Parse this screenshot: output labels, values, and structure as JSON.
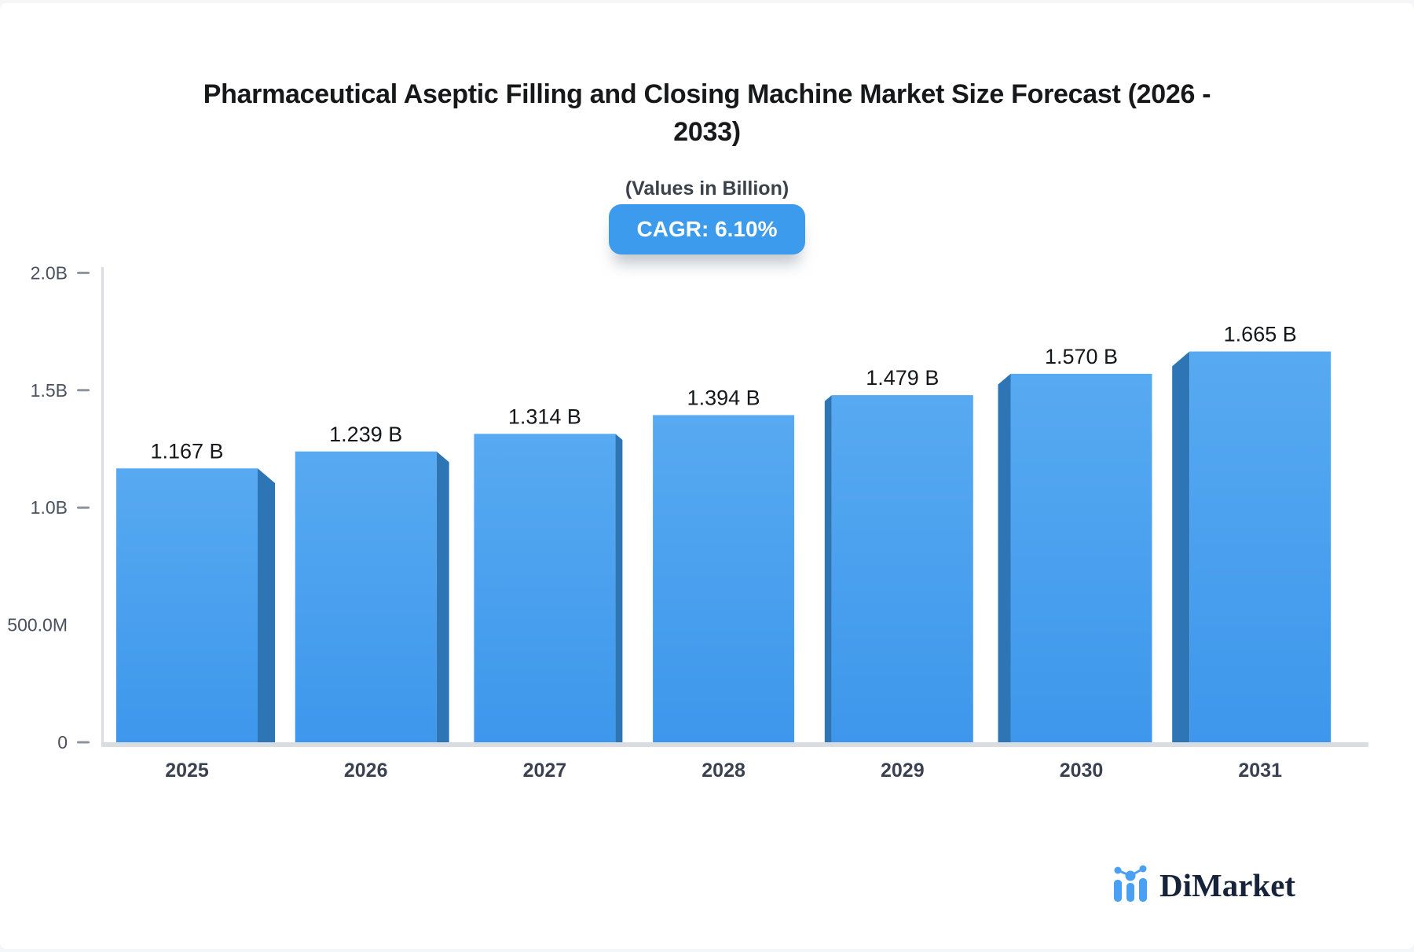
{
  "header": {
    "title_line1": "Pharmaceutical Aseptic Filling and Closing Machine Market Size Forecast (2026 -",
    "title_line2": "2033)",
    "subtitle": "(Values in Billion)",
    "cagr_badge": "CAGR: 6.10%"
  },
  "chart_data": {
    "type": "bar",
    "title": "Pharmaceutical Aseptic Filling and Closing Machine Market Size Forecast (2026 - 2033)",
    "subtitle": "(Values in Billion)",
    "cagr_label": "CAGR: 6.10%",
    "unit": "Billion",
    "categories": [
      "2025",
      "2026",
      "2027",
      "2028",
      "2029",
      "2030",
      "2031"
    ],
    "values": [
      1.167,
      1.239,
      1.314,
      1.394,
      1.479,
      1.57,
      1.665
    ],
    "bar_labels": [
      "1.167 B",
      "1.239 B",
      "1.314 B",
      "1.394 B",
      "1.479 B",
      "1.570 B",
      "1.665 B"
    ],
    "xlabel": "",
    "ylabel": "",
    "ylim": [
      0,
      2.0
    ],
    "grid": false,
    "legend": false,
    "y_ticks": [
      {
        "label": "2.0B",
        "value": 2.0,
        "tick": true
      },
      {
        "label": "1.5B",
        "value": 1.5,
        "tick": true
      },
      {
        "label": "1.0B",
        "value": 1.0,
        "tick": true
      },
      {
        "label": "500.0M",
        "value": 0.5,
        "tick": false
      },
      {
        "label": "0",
        "value": 0.0,
        "tick": true
      }
    ],
    "colors": {
      "bar_face_top": "#57aaf1",
      "bar_face_bottom": "#3e97ec",
      "bar_side": "#2e75b6",
      "axis_line": "#d9dce1",
      "tick_dash": "#8d949e",
      "y_label": "#49505e",
      "x_label": "#3a4252",
      "value_label": "#15171c"
    }
  },
  "branding": {
    "logo_text": "DiMarket",
    "logo_icon": "bar-chart-icon",
    "logo_icon_color": "#4aa0f4",
    "logo_text_color": "#16233a"
  },
  "colors": {
    "page_bg": "#f5f6f8",
    "card_bg": "#ffffff",
    "badge_bg": "#3d9bee",
    "badge_text": "#ffffff",
    "title": "#17181a",
    "subtitle": "#3b4249"
  }
}
